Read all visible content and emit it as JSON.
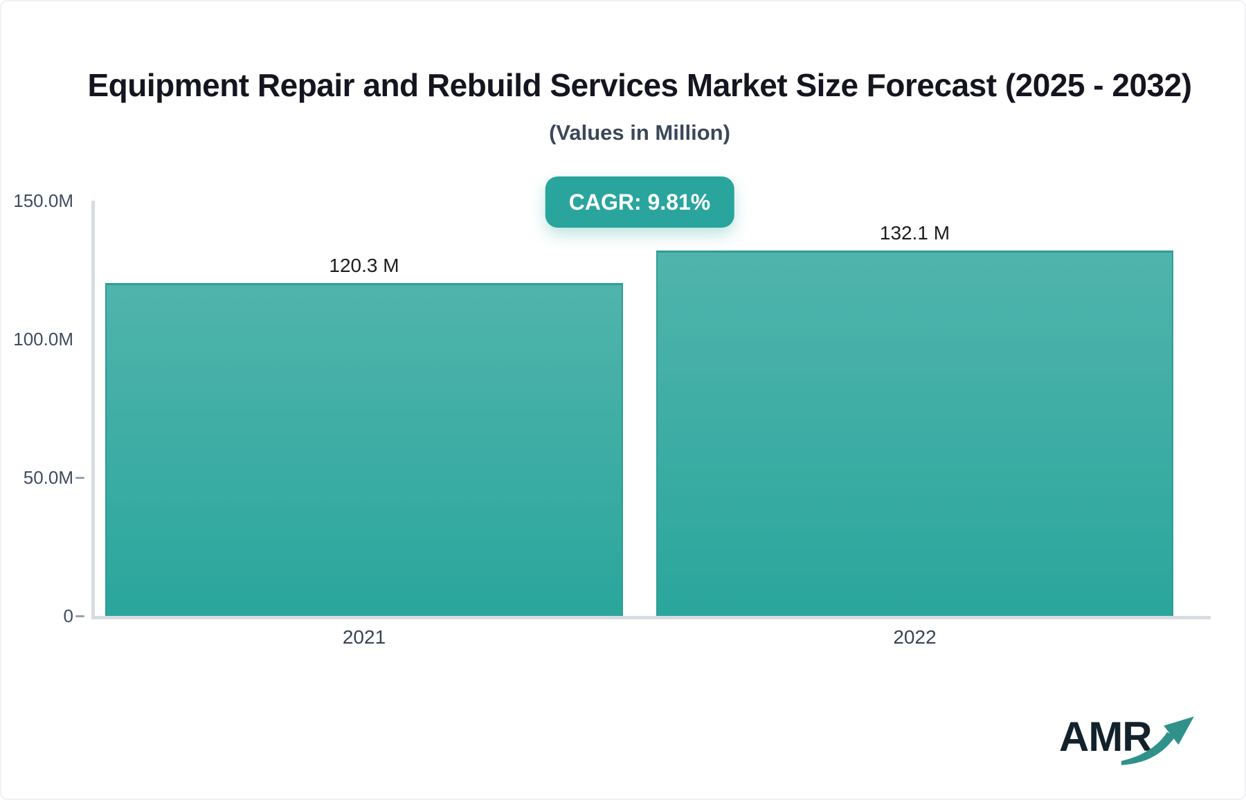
{
  "header": {
    "title": "Equipment Repair and Rebuild Services Market Size Forecast (2025 - 2032)",
    "subtitle": "(Values in Million)",
    "cagr_badge": "CAGR: 9.81%"
  },
  "chart_data": {
    "type": "bar",
    "title": "Equipment Repair and Rebuild Services Market Size Forecast (2025 - 2032)",
    "subtitle": "(Values in Million)",
    "annotation": "CAGR: 9.81%",
    "categories": [
      "2021",
      "2022"
    ],
    "values": [
      120.3,
      132.1
    ],
    "value_labels": [
      "120.3 M",
      "132.1 M"
    ],
    "unit": "Million",
    "xlabel": "",
    "ylabel": "",
    "ylim": [
      0,
      150
    ],
    "yticks": [
      {
        "value": 150,
        "label": "150.0M",
        "dash": false
      },
      {
        "value": 100,
        "label": "100.0M",
        "dash": false
      },
      {
        "value": 50,
        "label": "50.0M",
        "dash": true
      },
      {
        "value": 0,
        "label": "0",
        "dash": true
      }
    ],
    "grid": false,
    "legend": false
  },
  "branding": {
    "logo_text": "AMR"
  },
  "colors": {
    "bar_top": "#50b4ac",
    "bar_bottom": "#2aa69c",
    "bar_border": "#2f9d95",
    "badge_bg": "#2aa59d",
    "badge_text": "#ffffff",
    "axis_line": "#d7dbe2",
    "tick_dash": "#9aa0ac",
    "title_text": "#15151f",
    "subtitle_text": "#3c4759",
    "logo_arrow": "#30918b"
  }
}
